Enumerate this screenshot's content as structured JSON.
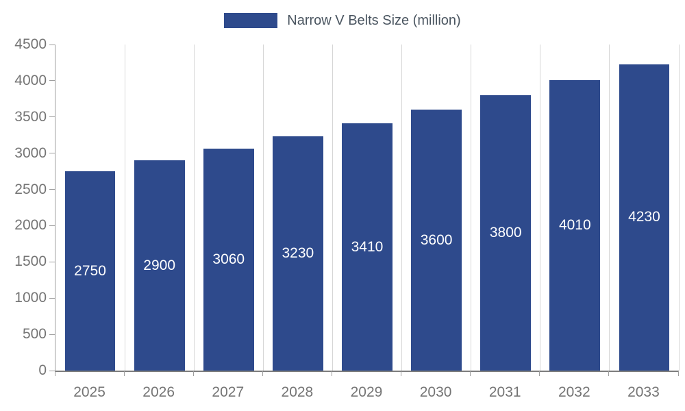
{
  "chart_data": {
    "type": "bar",
    "title": "Narrow V Belts Size (million)",
    "legend": "Narrow V Belts Size (million)",
    "categories": [
      "2025",
      "2026",
      "2027",
      "2028",
      "2029",
      "2030",
      "2031",
      "2032",
      "2033"
    ],
    "values": [
      2750,
      2900,
      3060,
      3230,
      3410,
      3600,
      3800,
      4010,
      4230
    ],
    "xlabel": "",
    "ylabel": "",
    "ylim": [
      0,
      4500
    ],
    "yticks": [
      0,
      500,
      1000,
      1500,
      2000,
      2500,
      3000,
      3500,
      4000,
      4500
    ],
    "legend_position": "top-center",
    "grid": "vertical",
    "bar_color": "#2e4a8c",
    "bar_label_color": "#ffffff",
    "axis_text_color": "#757575",
    "legend_text_color": "#4a5560",
    "grid_color": "#d6d6d6",
    "axis_line_color": "#9e9e9e"
  }
}
